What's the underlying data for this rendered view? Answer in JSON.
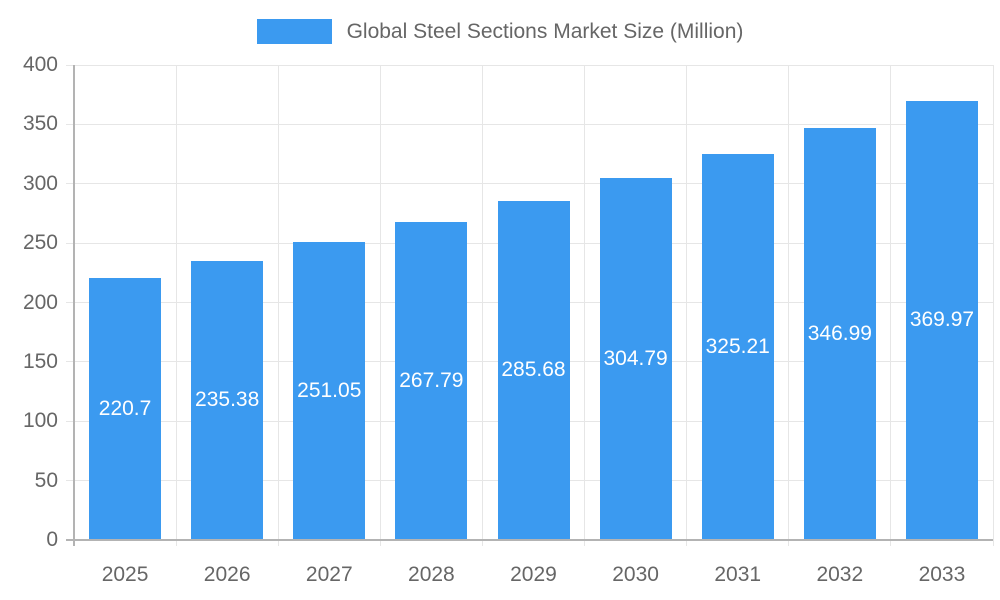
{
  "chart_data": {
    "type": "bar",
    "title": "Global Steel Sections Market Size (Million)",
    "categories": [
      "2025",
      "2026",
      "2027",
      "2028",
      "2029",
      "2030",
      "2031",
      "2032",
      "2033"
    ],
    "values": [
      220.7,
      235.38,
      251.05,
      267.79,
      285.68,
      304.79,
      325.21,
      346.99,
      369.97
    ],
    "xlabel": "",
    "ylabel": "",
    "ylim": [
      0,
      400
    ],
    "yticks": [
      0,
      50,
      100,
      150,
      200,
      250,
      300,
      350,
      400
    ],
    "grid": true,
    "legend_position": "top-center",
    "value_labels_position": "inside-center",
    "colors": {
      "bar": "#3b9af0",
      "value_label": "#ffffff",
      "axis_text": "#666666",
      "gridline": "#e6e6e6",
      "axis_line": "#b3b3b3"
    }
  },
  "legend": {
    "label": "Global Steel Sections Market Size (Million)"
  }
}
